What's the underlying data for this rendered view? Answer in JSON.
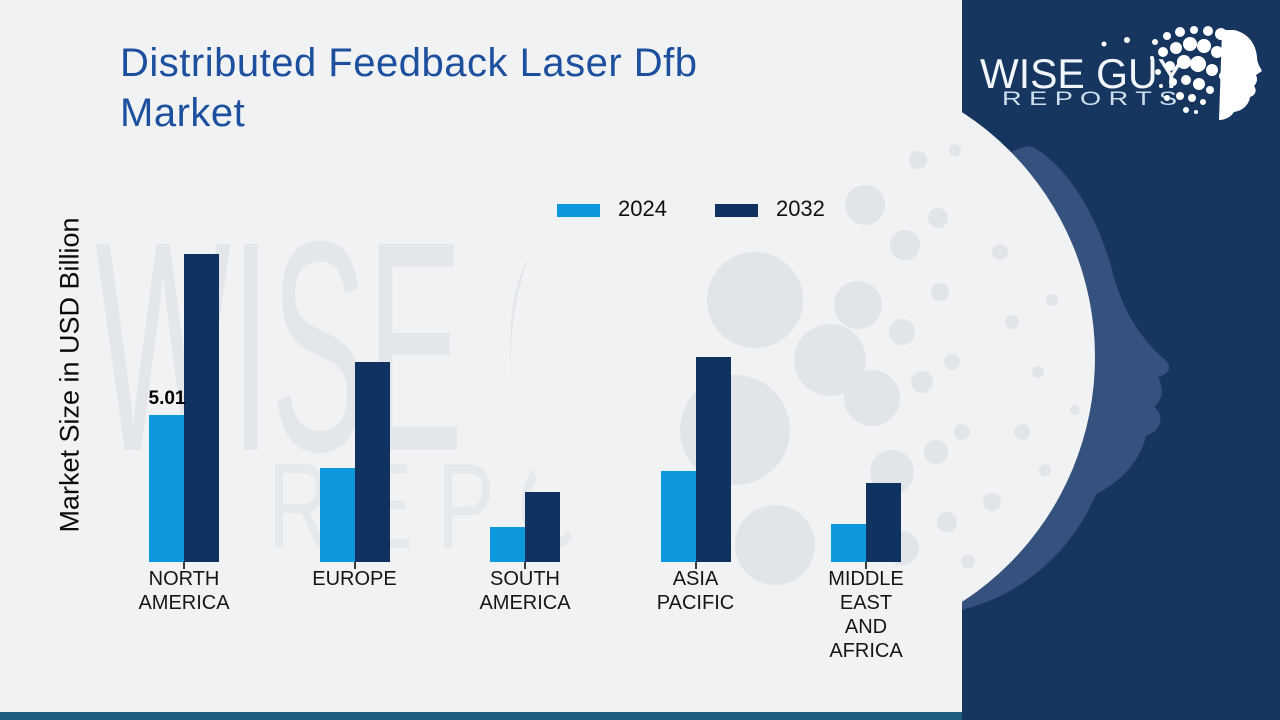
{
  "page": {
    "background_color": "#f1f2f3",
    "bottom_accent_color": "#1d5e7f",
    "brand_panel_color": "#16365f",
    "title_color": "#1c4f9e"
  },
  "header": {
    "title_line1": "Distributed Feedback Laser Dfb",
    "title_line2": "Market"
  },
  "logo": {
    "brand_top": "WISE GUY",
    "brand_bottom": "R E P O R T S"
  },
  "watermark": {
    "line1": "WISE GUY",
    "line2": "R E P O R T S"
  },
  "chart_data": {
    "type": "bar",
    "title": "Distributed Feedback Laser Dfb Market",
    "xlabel": "",
    "ylabel": "Market Size in USD Billion",
    "categories": [
      "NORTH AMERICA",
      "EUROPE",
      "SOUTH AMERICA",
      "ASIA PACIFIC",
      "MIDDLE EAST AND AFRICA"
    ],
    "category_lines": [
      [
        "NORTH",
        "AMERICA"
      ],
      [
        "EUROPE"
      ],
      [
        "SOUTH",
        "AMERICA"
      ],
      [
        "ASIA",
        "PACIFIC"
      ],
      [
        "MIDDLE",
        "EAST",
        "AND",
        "AFRICA"
      ]
    ],
    "series": [
      {
        "name": "2024",
        "color": "#0d97dd",
        "values": [
          5.01,
          3.2,
          1.2,
          3.1,
          1.3
        ]
      },
      {
        "name": "2032",
        "color": "#0f3260",
        "values": [
          10.5,
          6.8,
          2.4,
          7.0,
          2.7
        ]
      }
    ],
    "annotation": {
      "category_index": 0,
      "series_index": 0,
      "text": "5.01"
    },
    "legend_position": "top",
    "grid": false,
    "ylim": [
      0,
      11
    ]
  }
}
